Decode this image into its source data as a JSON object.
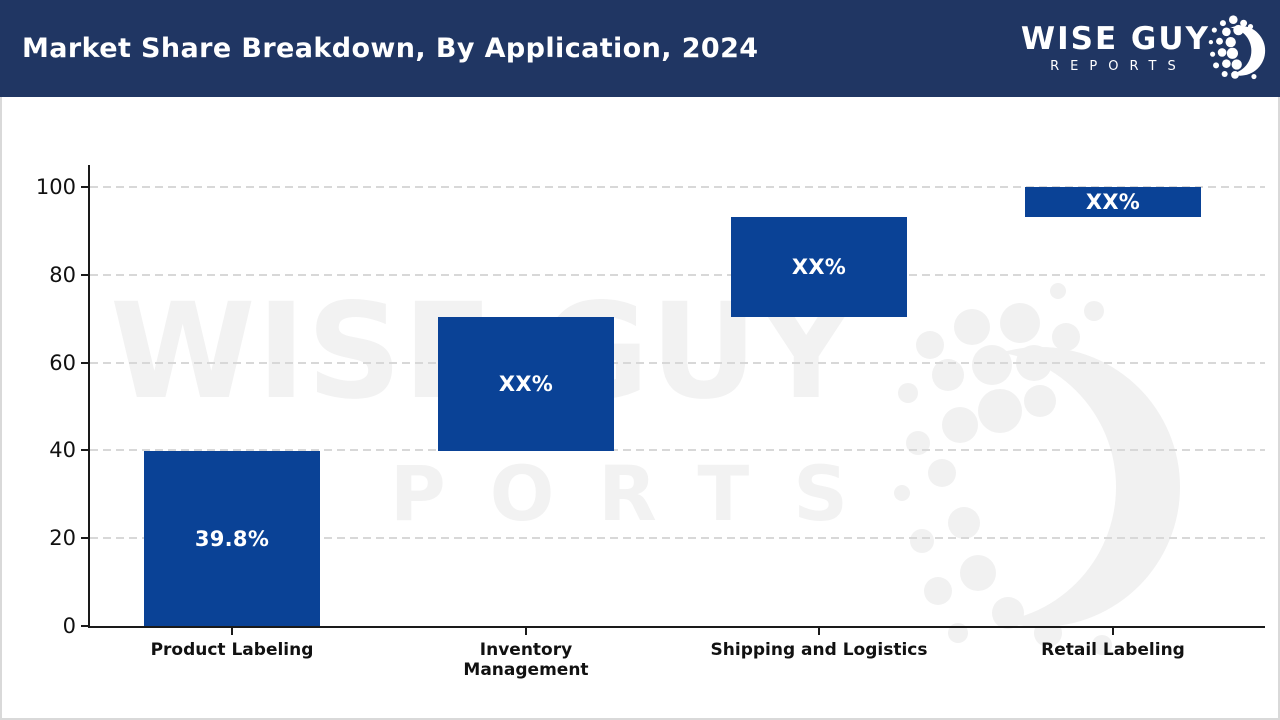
{
  "header": {
    "title": "Market Share Breakdown, By Application, 2024",
    "logo": {
      "line1": "WISE GUY",
      "line2": "REPORTS"
    },
    "bg_color": "#203663"
  },
  "watermark": {
    "line1": "WISE GUY",
    "line2": "PORTS"
  },
  "chart_data": {
    "type": "bar",
    "subtype": "waterfall-stacked-percentage",
    "title": "Market Share Breakdown, By Application, 2024",
    "categories": [
      "Product Labeling",
      "Inventory Management",
      "Shipping and Logistics",
      "Retail Labeling"
    ],
    "segments": [
      {
        "category": "Product Labeling",
        "start": 0,
        "end": 39.8,
        "value": 39.8,
        "label": "39.8%"
      },
      {
        "category": "Inventory Management",
        "start": 39.8,
        "end": 70.4,
        "value": 30.6,
        "label": "XX%"
      },
      {
        "category": "Shipping and Logistics",
        "start": 70.4,
        "end": 93.2,
        "value": 22.8,
        "label": "XX%"
      },
      {
        "category": "Retail Labeling",
        "start": 93.2,
        "end": 100,
        "value": 6.8,
        "label": "XX%"
      }
    ],
    "xlabel": "",
    "ylabel": "",
    "ylim": [
      0,
      100
    ],
    "yticks": [
      0,
      20,
      40,
      60,
      80,
      100
    ],
    "grid": "horizontal-dashed",
    "legend": "none",
    "bar_color": "#0a4296",
    "bar_label_color": "#ffffff",
    "axis_color": "#1a1a1a"
  }
}
